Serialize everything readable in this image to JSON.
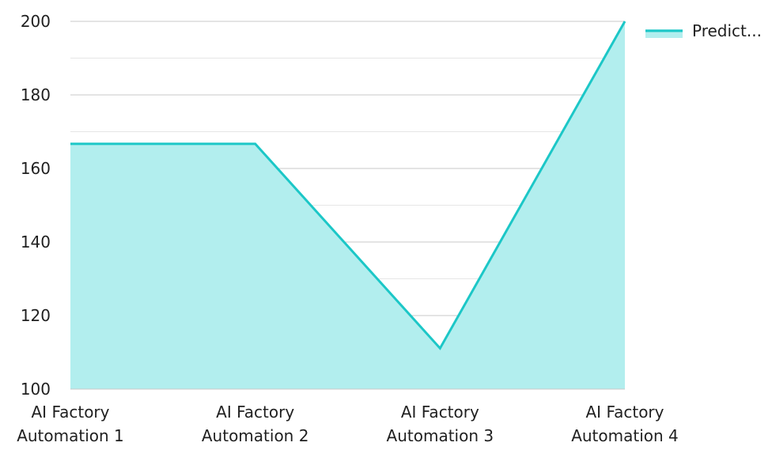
{
  "chart_data": {
    "type": "area",
    "categories": [
      [
        "AI Factory",
        "Automation 1"
      ],
      [
        "AI Factory",
        "Automation 2"
      ],
      [
        "AI Factory",
        "Automation 3"
      ],
      [
        "AI Factory",
        "Automation 4"
      ]
    ],
    "series": [
      {
        "name": "Predict...",
        "values": [
          166.7,
          166.7,
          111.1,
          200
        ],
        "line_color": "#1cc7c7",
        "fill_color": "#b2eeee"
      }
    ],
    "ylim": [
      100,
      200
    ],
    "yticks": [
      100,
      120,
      140,
      160,
      180,
      200
    ],
    "minor_gridlines": true,
    "legend_position": "top-right",
    "grid": true
  }
}
